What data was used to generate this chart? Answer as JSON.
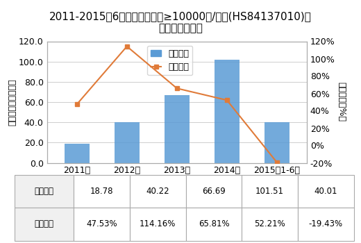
{
  "title_line1": "2011-2015年6月离心泵（转速≥10000转/分）(HS84137010)进",
  "title_line2": "口量及增速统计",
  "categories": [
    "2011年",
    "2012年",
    "2013年",
    "2014年",
    "2015年1-6月"
  ],
  "bar_values": [
    18.78,
    40.22,
    66.69,
    101.51,
    40.01
  ],
  "line_values": [
    47.53,
    114.16,
    65.81,
    52.21,
    -19.43
  ],
  "bar_color": "#5B9BD5",
  "line_color": "#E07B39",
  "ylabel_left": "进口数量（万（台）",
  "ylabel_right": "同比增长（%）",
  "ylim_left": [
    0,
    120
  ],
  "ylim_right": [
    -20,
    120
  ],
  "yticks_left": [
    0.0,
    20.0,
    40.0,
    60.0,
    80.0,
    100.0,
    120.0
  ],
  "yticks_right": [
    -20,
    0,
    20,
    40,
    60,
    80,
    100,
    120
  ],
  "ytick_labels_right": [
    "-20%",
    "0%",
    "20%",
    "40%",
    "60%",
    "80%",
    "100%",
    "120%"
  ],
  "legend_labels": [
    "进口数量",
    "同比增长"
  ],
  "table_row1_label": "进口数量",
  "table_row2_label": "同比增长",
  "table_row1": [
    "18.78",
    "40.22",
    "66.69",
    "101.51",
    "40.01"
  ],
  "table_row2": [
    "47.53%",
    "114.16%",
    "65.81%",
    "52.21%",
    "-19.43%"
  ],
  "background_color": "#FFFFFF",
  "title_fontsize": 11,
  "axis_fontsize": 9,
  "table_fontsize": 8.5
}
